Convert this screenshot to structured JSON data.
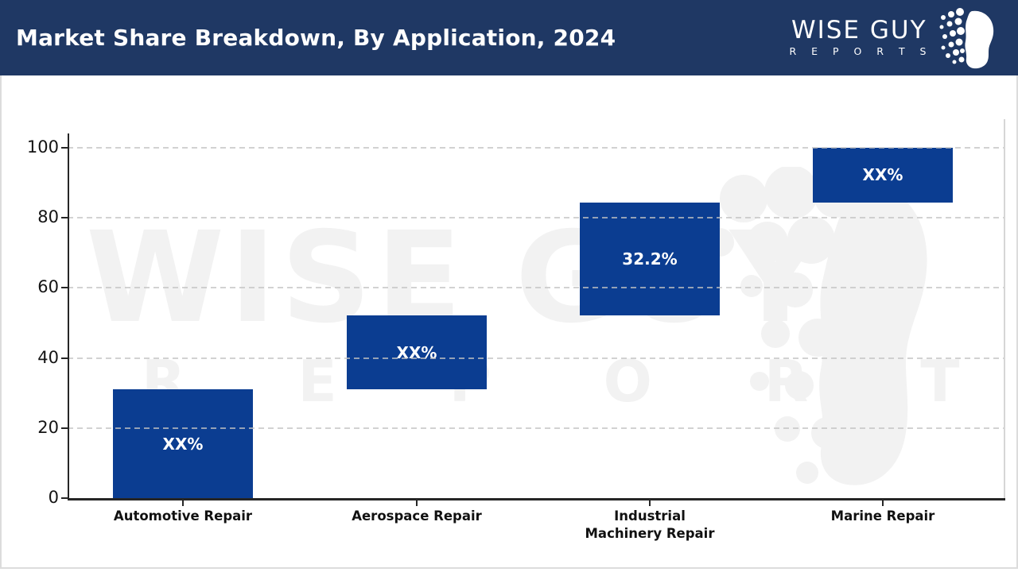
{
  "header": {
    "title": "Market Share Breakdown, By Application, 2024",
    "brand_line1": "WISE GUY",
    "brand_line2": "R E P O R T S"
  },
  "watermark": {
    "line1": "WISE GUY",
    "line2": "R E P O R T S"
  },
  "colors": {
    "header_bg": "#1f3864",
    "bar_fill": "#0b3d91",
    "bar_label_text": "#ffffff",
    "axis": "#262626",
    "gridline": "#d9d9d9",
    "watermark_text": "#f2f2f2",
    "frame_border": "#dcdcdc"
  },
  "chart_data": {
    "type": "bar",
    "variant": "waterfall",
    "title": "Market Share Breakdown, By Application, 2024",
    "categories": [
      "Automotive Repair",
      "Aerospace Repair",
      "Industrial Machinery Repair",
      "Marine Repair"
    ],
    "segments": [
      {
        "category": "Automotive Repair",
        "start": 0,
        "end": 31,
        "label": "XX%",
        "axis_label_lines": [
          "Automotive Repair"
        ]
      },
      {
        "category": "Aerospace Repair",
        "start": 31,
        "end": 52.2,
        "label": "XX%",
        "axis_label_lines": [
          "Aerospace Repair"
        ]
      },
      {
        "category": "Industrial Machinery Repair",
        "start": 52.2,
        "end": 84.4,
        "label": "32.2%",
        "axis_label_lines": [
          "Industrial",
          "Machinery Repair"
        ]
      },
      {
        "category": "Marine Repair",
        "start": 84.4,
        "end": 100,
        "label": "XX%",
        "axis_label_lines": [
          "Marine Repair"
        ]
      }
    ],
    "yticks": [
      0,
      20,
      40,
      60,
      80,
      100
    ],
    "ylim": [
      0,
      105
    ],
    "xlabel": "",
    "ylabel": "",
    "grid": "horizontal-dashed",
    "legend": "none"
  }
}
